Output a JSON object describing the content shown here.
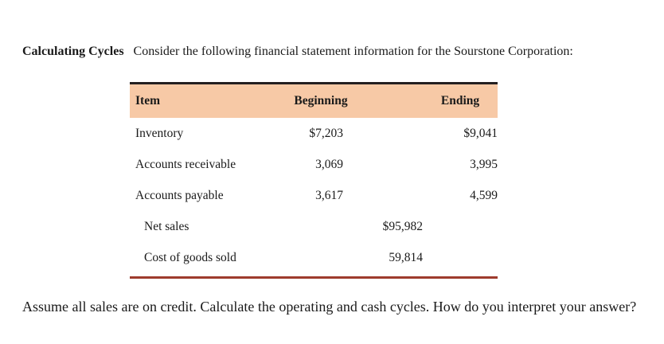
{
  "intro": {
    "label": "Calculating Cycles",
    "text": "Consider the following financial statement information for the Sourstone Corporation:"
  },
  "table": {
    "headers": [
      "Item",
      "Beginning",
      "Ending"
    ],
    "rows": [
      {
        "item": "Inventory",
        "beginning": "$7,203",
        "middle": "",
        "ending": "$9,041",
        "indent": false
      },
      {
        "item": "Accounts receivable",
        "beginning": "3,069",
        "middle": "",
        "ending": "3,995",
        "indent": false
      },
      {
        "item": "Accounts payable",
        "beginning": "3,617",
        "middle": "",
        "ending": "4,599",
        "indent": false
      },
      {
        "item": "Net sales",
        "beginning": "",
        "middle": "$95,982",
        "ending": "",
        "indent": true
      },
      {
        "item": "Cost of goods sold",
        "beginning": "",
        "middle": "59,814",
        "ending": "",
        "indent": true
      }
    ]
  },
  "footer": {
    "text": "Assume all sales are on credit. Calculate the operating and cash cycles. How do you interpret your answer?"
  },
  "colors": {
    "header_bg": "#f7c9a6",
    "top_rule": "#231f20",
    "bottom_rule": "#9e3b2d"
  }
}
